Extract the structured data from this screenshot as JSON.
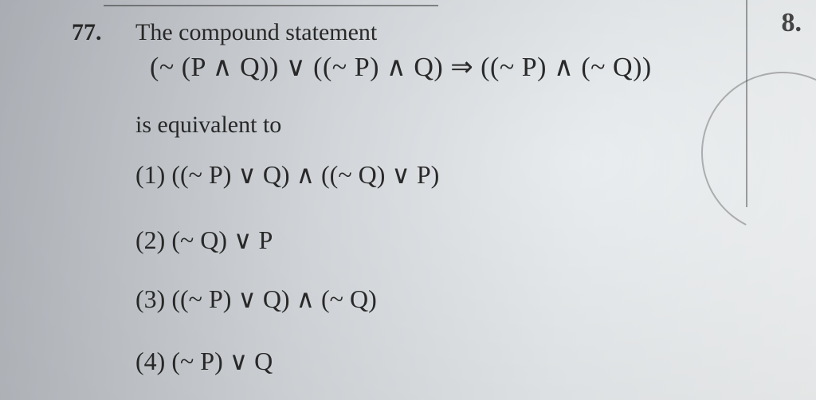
{
  "question": {
    "number": "77.",
    "stem_line1": "The compound statement",
    "formula": "(~ (P ∧ Q)) ∨ ((~ P) ∧ Q) ⇒ ((~ P) ∧ (~ Q))",
    "stem_line2": "is equivalent to",
    "options": [
      "(1) ((~ P) ∨ Q) ∧ ((~ Q) ∨ P)",
      "(2) (~ Q) ∨ P",
      "(3) ((~ P) ∨ Q) ∧ (~ Q)",
      "(4) (~ P) ∨ Q"
    ]
  },
  "adjacent": {
    "next_label": "8."
  },
  "style": {
    "text_color": "#2a2a2a",
    "bg_gradient_from": "#b8bcc2",
    "bg_gradient_to": "#f2f4f5",
    "question_number_fontsize": 30,
    "stem_fontsize": 30,
    "formula_fontsize": 34,
    "option_fontsize": 32,
    "font_family": "Times New Roman"
  }
}
